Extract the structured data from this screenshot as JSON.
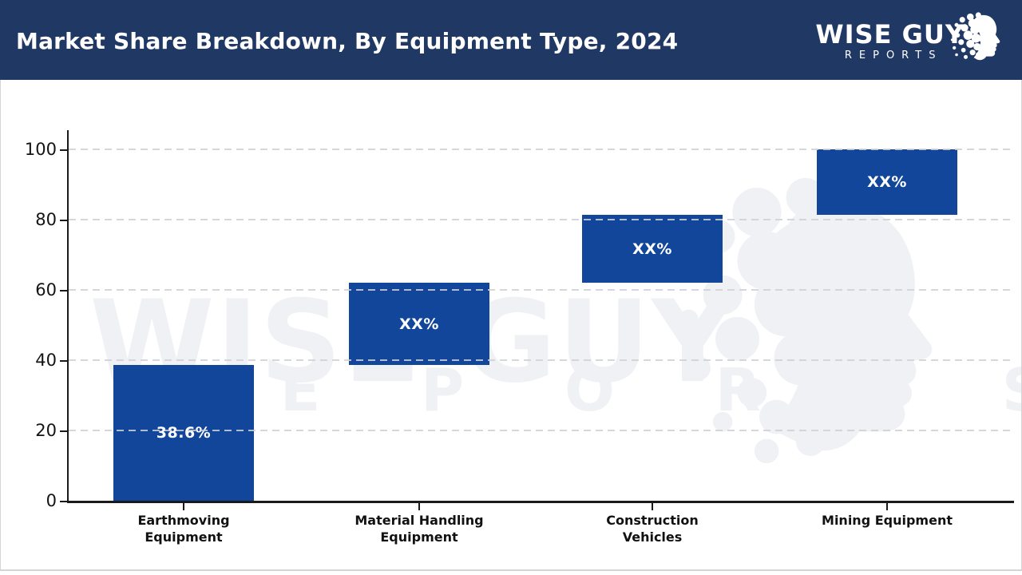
{
  "header": {
    "title": "Market Share Breakdown, By Equipment Type, 2024",
    "bg_color": "#203864",
    "logo": {
      "line1": "WISE GUY",
      "line2": "REPORTS"
    }
  },
  "watermark": {
    "line1": "WISE GUY",
    "line2": "R E P O R T S"
  },
  "colors": {
    "header_bg": "#203864",
    "bar_blue": "#11469b",
    "watermark_gray": "#f0f1f4",
    "gridline_gray": "#d0d2d6",
    "axis_black": "#1a1a1a"
  },
  "chart_data": {
    "type": "bar",
    "subtype": "waterfall-style floating bars, each segment starts where previous ended",
    "title": "Market Share Breakdown, By Equipment Type, 2024",
    "categories": [
      "Earthmoving Equipment",
      "Material Handling Equipment",
      "Construction Vehicles",
      "Mining Equipment"
    ],
    "tick_label_lines": [
      [
        "Earthmoving",
        "Equipment"
      ],
      [
        "Material Handling",
        "Equipment"
      ],
      [
        "Construction",
        "Vehicles"
      ],
      [
        "Mining Equipment"
      ]
    ],
    "segments": [
      {
        "start": 0,
        "end": 38.6,
        "label": "38.6%"
      },
      {
        "start": 38.6,
        "end": 62.0,
        "label": "XX%"
      },
      {
        "start": 62.0,
        "end": 81.3,
        "label": "XX%"
      },
      {
        "start": 81.3,
        "end": 100,
        "label": "XX%"
      }
    ],
    "values": [
      38.6,
      23.4,
      19.3,
      18.7
    ],
    "yticks": [
      0,
      20,
      40,
      60,
      80,
      100
    ],
    "ylim": [
      0,
      105.5
    ],
    "xlabel": "",
    "ylabel": "",
    "grid": "dashed-horizontal",
    "legend": "none",
    "bar_color": "#11469b",
    "bar_label_color": "#ffffff"
  }
}
